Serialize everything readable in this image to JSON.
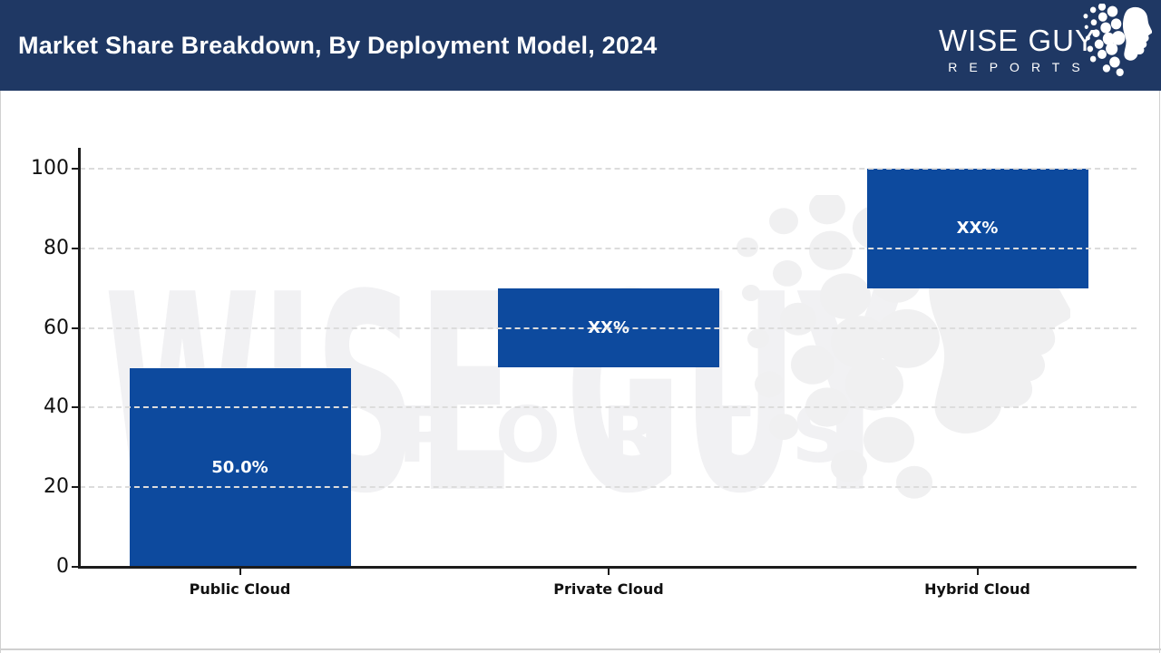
{
  "header": {
    "title": "Market Share Breakdown, By Deployment Model, 2024",
    "logo": {
      "wordmark": "WISE GUY",
      "subtext": "REPORTS"
    }
  },
  "watermark": {
    "line1": "WISE GUY",
    "line2": "REPORTS"
  },
  "colors": {
    "header_bg": "#1f3864",
    "bar": "#0d4a9e",
    "bar_label": "#ffffff",
    "grid": "#dcdcdc",
    "axis": "#1c1c1c",
    "tick_label": "#111111",
    "watermark": "#f1f1f3",
    "border": "#d0d0d0"
  },
  "chart_data": {
    "type": "bar",
    "subtype": "floating-waterfall",
    "title": "Market Share Breakdown, By Deployment Model, 2024",
    "categories": [
      "Public Cloud",
      "Private Cloud",
      "Hybrid Cloud"
    ],
    "bars": [
      {
        "category": "Public Cloud",
        "from": 0,
        "to": 50,
        "label": "50.0%"
      },
      {
        "category": "Private Cloud",
        "from": 50,
        "to": 70,
        "label": "XX%"
      },
      {
        "category": "Hybrid Cloud",
        "from": 70,
        "to": 100,
        "label": "XX%"
      }
    ],
    "yticks": [
      0,
      20,
      40,
      60,
      80,
      100
    ],
    "ylim": [
      0,
      105
    ],
    "xlabel": "",
    "ylabel": "",
    "grid": "horizontal-dashed",
    "legend": "none",
    "bar_color": "#0d4a9e",
    "value_label_color": "#ffffff"
  }
}
